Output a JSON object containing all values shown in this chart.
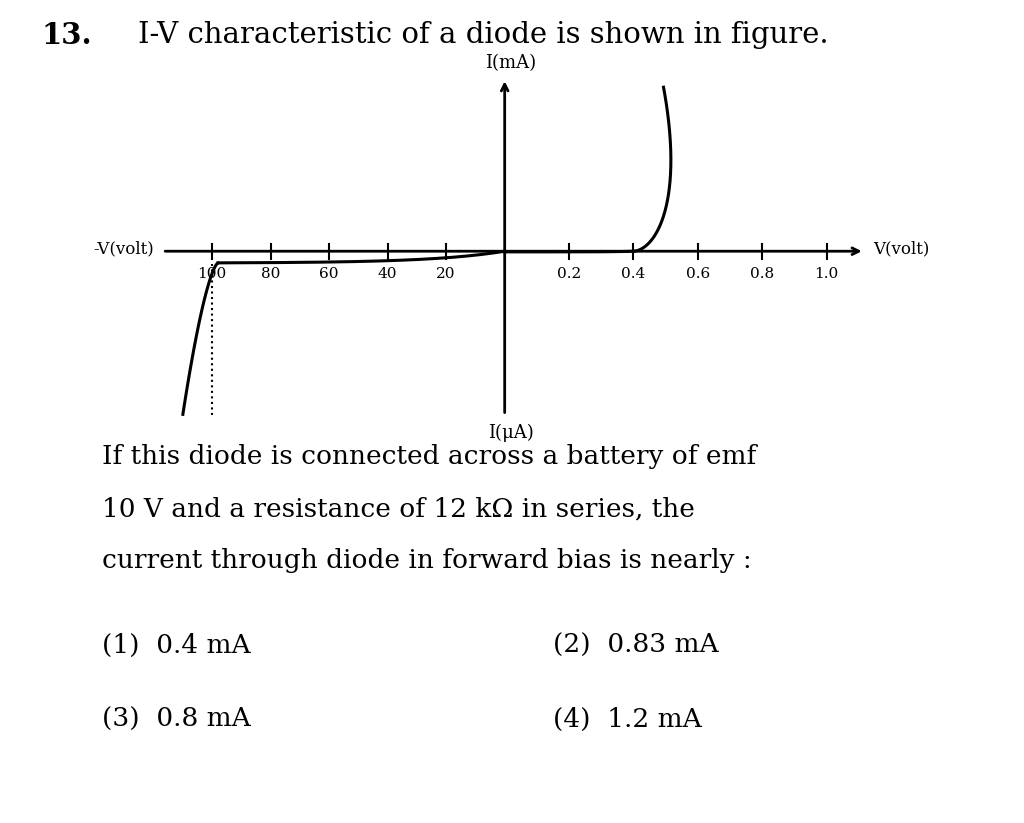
{
  "title_number": "13.",
  "title_text": "I-V characteristic of a diode is shown in figure.",
  "x_label_pos": "V(volt)",
  "x_label_neg": "-V(volt)",
  "y_label_top": "I(mA)",
  "y_label_bot": "I(μA)",
  "neg_x_tick_labels": [
    "100",
    "80",
    "60",
    "40",
    "20"
  ],
  "neg_x_tick_pos": [
    -100,
    -80,
    -60,
    -40,
    -20
  ],
  "pos_x_tick_labels": [
    "0.2",
    "0.4",
    "0.6",
    "0.8",
    "1.0"
  ],
  "pos_x_tick_pos": [
    22,
    44,
    66,
    88,
    110
  ],
  "paragraph_lines": [
    "If this diode is connected across a battery of emf",
    "10 V and a resistance of 12 kΩ in series, the",
    "current through diode in forward bias is nearly :"
  ],
  "options": [
    {
      "num": "(1)",
      "val": "0.4 mA",
      "col": 0
    },
    {
      "num": "(2)",
      "val": "0.83 mA",
      "col": 1
    },
    {
      "num": "(3)",
      "val": "0.8 mA",
      "col": 0
    },
    {
      "num": "(4)",
      "val": "1.2 mA",
      "col": 1
    }
  ],
  "bg_color": "#ffffff",
  "text_color": "#000000",
  "curve_color": "#000000",
  "axis_color": "#000000"
}
